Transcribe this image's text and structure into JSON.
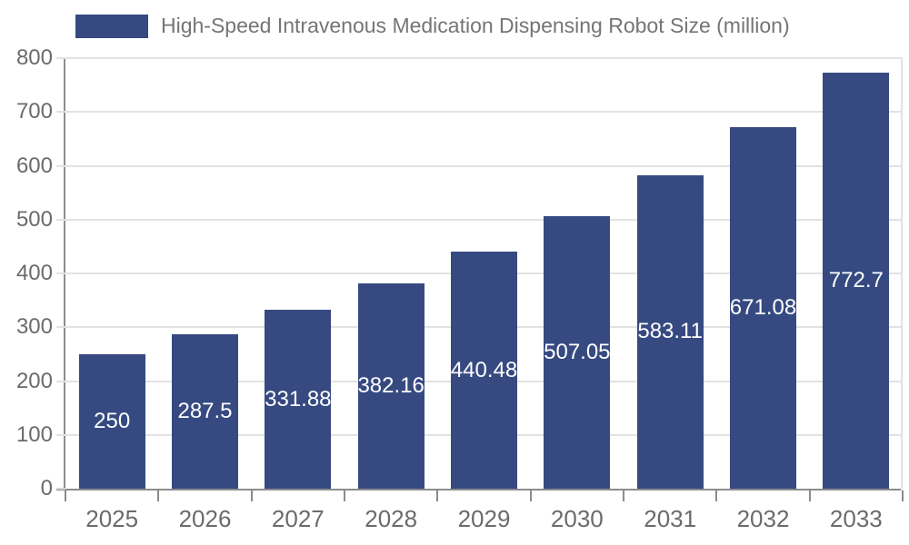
{
  "legend": {
    "series_label": "High-Speed Intravenous Medication Dispensing Robot Size (million)"
  },
  "chart_data": {
    "type": "bar",
    "title": "",
    "categories": [
      "2025",
      "2026",
      "2027",
      "2028",
      "2029",
      "2030",
      "2031",
      "2032",
      "2033"
    ],
    "series": [
      {
        "name": "High-Speed Intravenous Medication Dispensing Robot Size (million)",
        "values": [
          250,
          287.5,
          331.88,
          382.16,
          440.48,
          507.05,
          583.11,
          671.08,
          772.7
        ]
      }
    ],
    "value_labels": [
      "250",
      "287.5",
      "331.88",
      "382.16",
      "440.48",
      "507.05",
      "583.11",
      "671.08",
      "772.7"
    ],
    "xlabel": "",
    "ylabel": "",
    "ylim": [
      0,
      800
    ],
    "yticks": [
      0,
      100,
      200,
      300,
      400,
      500,
      600,
      700,
      800
    ],
    "grid": true,
    "legend_position": "top-left",
    "value_label_placement": "inside-center"
  },
  "colors": {
    "bar": "#364a81",
    "grid": "#e2e2e2",
    "axis": "#8c8c8c",
    "tick_mark": "#d6d6d6",
    "tick_label": "#6b6b6b",
    "legend_text": "#757575",
    "value_label": "#ffffff",
    "background": "#ffffff"
  }
}
